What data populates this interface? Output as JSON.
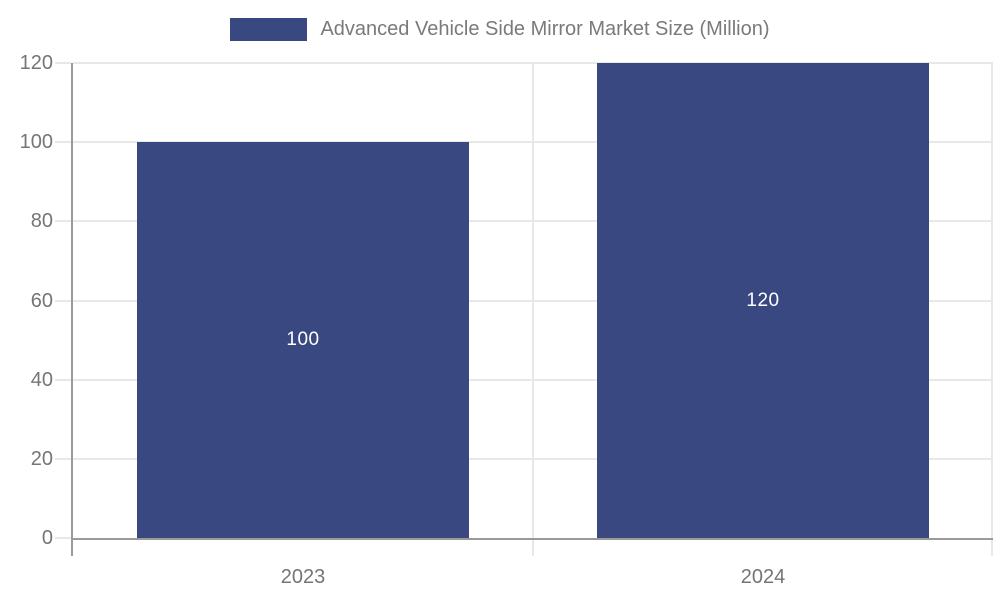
{
  "legend": {
    "label": "Advanced Vehicle Side Mirror Market Size (Million)"
  },
  "chart_data": {
    "type": "bar",
    "title": "Advanced Vehicle Side Mirror Market Size (Million)",
    "categories": [
      "2023",
      "2024"
    ],
    "series": [
      {
        "name": "Advanced Vehicle Side Mirror Market Size (Million)",
        "values": [
          100,
          120
        ]
      }
    ],
    "value_labels": [
      "100",
      "120"
    ],
    "xlabel": "",
    "ylabel": "",
    "ylim": [
      0,
      120
    ],
    "yticks": [
      0,
      20,
      40,
      60,
      80,
      100,
      120
    ],
    "grid": true,
    "legend_position": "top-center",
    "colors": {
      "bar": "#3a4882",
      "grid": "#e8e8e8",
      "axis": "#9a9a9a",
      "tick_label": "#757575",
      "legend_text": "#7a7a7a",
      "value_label": "#ffffff"
    }
  }
}
